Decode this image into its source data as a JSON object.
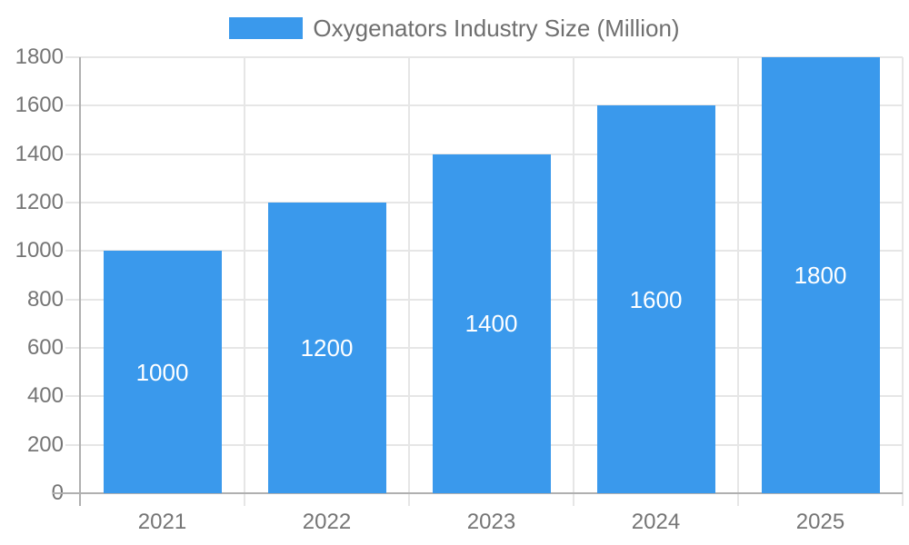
{
  "page": {
    "background": "#ffffff"
  },
  "legend": {
    "label": "Oxygenators Industry Size (Million)"
  },
  "chart_data": {
    "type": "bar",
    "title": "Oxygenators Industry Size (Million)",
    "categories": [
      "2021",
      "2022",
      "2023",
      "2024",
      "2025"
    ],
    "values": [
      1000,
      1200,
      1400,
      1600,
      1800
    ],
    "bar_value_labels": [
      "1000",
      "1200",
      "1400",
      "1600",
      "1800"
    ],
    "xlabel": "",
    "ylabel": "",
    "ylim": [
      0,
      1800
    ],
    "ytick_step": 200,
    "yticks": [
      0,
      200,
      400,
      600,
      800,
      1000,
      1200,
      1400,
      1600,
      1800
    ],
    "grid": true,
    "legend_position": "top-center",
    "bar_color": "#3a99ec",
    "value_label_color": "#ffffff",
    "axis_text_color": "#757575",
    "legend_text_color": "#6f6f6f",
    "gridline_color": "#e6e6e6",
    "axis_line_color": "#b0b0b0",
    "background_color": "#ffffff"
  }
}
